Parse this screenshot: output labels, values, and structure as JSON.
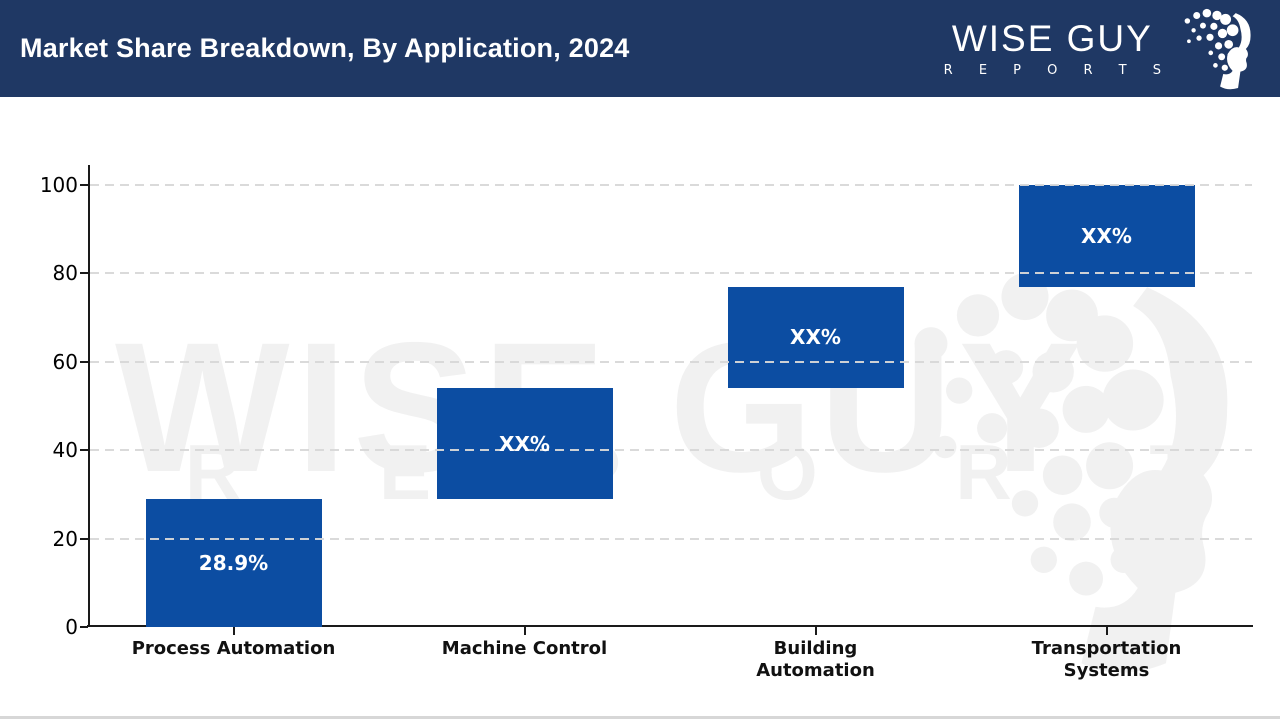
{
  "header": {
    "title": "Market Share Breakdown, By Application, 2024",
    "bg_color": "#1f3864",
    "logo": {
      "line1": "WISE GUY",
      "line2": "REPORTS",
      "icon": "dotted-head-profile-icon",
      "color": "#ffffff"
    }
  },
  "watermark": {
    "line1": "WISE GUY",
    "line2": "REPORTS",
    "icon": "dotted-head-profile-icon",
    "color": "#f1f1f1"
  },
  "chart_data": {
    "type": "bar",
    "subtype": "waterfall",
    "title": "Market Share Breakdown, By Application, 2024",
    "categories": [
      "Process Automation",
      "Machine Control",
      "Building Automation",
      "Transportation Systems"
    ],
    "category_lines": [
      [
        "Process Automation"
      ],
      [
        "Machine Control"
      ],
      [
        "Building",
        "Automation"
      ],
      [
        "Transportation",
        "Systems"
      ]
    ],
    "segments": [
      {
        "category": "Process Automation",
        "start": 0,
        "end": 28.9,
        "label": "28.9%"
      },
      {
        "category": "Machine Control",
        "start": 28.9,
        "end": 54,
        "label": "XX%"
      },
      {
        "category": "Building Automation",
        "start": 54,
        "end": 77,
        "label": "XX%"
      },
      {
        "category": "Transportation Systems",
        "start": 77,
        "end": 100,
        "label": "XX%"
      }
    ],
    "xlabel": "",
    "ylabel": "",
    "ylim": [
      0,
      100
    ],
    "yticks": [
      0,
      20,
      40,
      60,
      80,
      100
    ],
    "grid": "horizontal-dashed",
    "gridline_color": "#d8d8d8",
    "bar_color": "#0c4da2",
    "bar_label_color": "#ffffff",
    "axis_color": "#1a1a1a",
    "legend": null
  }
}
